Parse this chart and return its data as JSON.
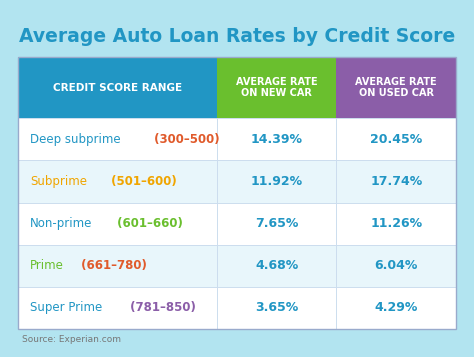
{
  "title": "Average Auto Loan Rates by Credit Score",
  "title_color": "#2196c4",
  "background_color": "#b2e4f0",
  "header_col1_bg": "#2196c4",
  "header_col2_bg": "#6abf2e",
  "header_col3_bg": "#8b5ea8",
  "header_text_color": "#ffffff",
  "header_col1": "CREDIT SCORE RANGE",
  "header_col2": "AVERAGE RATE\nON NEW CAR",
  "header_col3": "AVERAGE RATE\nON USED CAR",
  "row_bg_even": "#ffffff",
  "row_bg_odd": "#e8f6fb",
  "rows": [
    {
      "label": "Deep subprime",
      "range": " (300–500)",
      "new_rate": "14.39%",
      "used_rate": "20.45%",
      "label_color": "#2196c4",
      "range_color": "#e05a2b"
    },
    {
      "label": "Subprime",
      "range": " (501–600)",
      "new_rate": "11.92%",
      "used_rate": "17.74%",
      "label_color": "#f0a500",
      "range_color": "#f0a500"
    },
    {
      "label": "Non-prime",
      "range": " (601–660)",
      "new_rate": "7.65%",
      "used_rate": "11.26%",
      "label_color": "#2196c4",
      "range_color": "#6abf2e"
    },
    {
      "label": "Prime",
      "range": " (661–780)",
      "new_rate": "4.68%",
      "used_rate": "6.04%",
      "label_color": "#6abf2e",
      "range_color": "#e05a2b"
    },
    {
      "label": "Super Prime",
      "range": " (781–850)",
      "new_rate": "3.65%",
      "used_rate": "4.29%",
      "label_color": "#2196c4",
      "range_color": "#8b5ea8"
    }
  ],
  "rate_color": "#2196c4",
  "source_text": "Source: Experian.com",
  "source_color": "#777777",
  "divider_color": "#ccddee"
}
